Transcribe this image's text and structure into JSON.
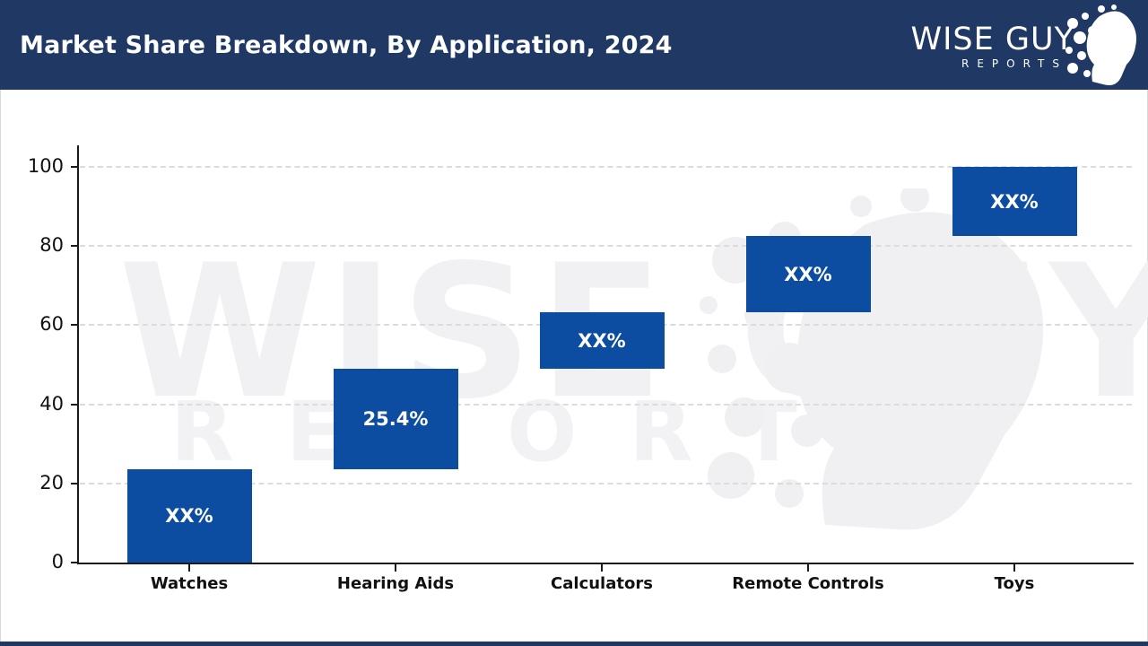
{
  "header": {
    "title": "Market Share Breakdown, By Application, 2024",
    "logo": {
      "wordmark": "WISE GUY",
      "subtext": "REPORTS"
    }
  },
  "watermark": {
    "wordmark": "WISE GUY",
    "subtext": "REPORTS"
  },
  "chart_data": {
    "type": "bar",
    "subtype": "waterfall",
    "title": "Market Share Breakdown, By Application, 2024",
    "categories": [
      "Watches",
      "Hearing Aids",
      "Calculators",
      "Remote Controls",
      "Toys"
    ],
    "segments": [
      [
        0,
        23.6
      ],
      [
        23.6,
        49.0
      ],
      [
        49.0,
        63.2
      ],
      [
        63.2,
        82.5
      ],
      [
        82.5,
        100.0
      ]
    ],
    "values": [
      23.6,
      25.4,
      14.2,
      19.3,
      17.5
    ],
    "bar_labels": [
      "XX%",
      "25.4%",
      "XX%",
      "XX%",
      "XX%"
    ],
    "xlabel": "",
    "ylabel": "",
    "y_ticks": [
      0,
      20,
      40,
      60,
      80,
      100
    ],
    "ylim": [
      0,
      105
    ],
    "grid": "horizontal-dashed",
    "legend": "none",
    "bar_color": "#0c4da2",
    "bar_label_color": "#ffffff",
    "axis_color": "#1a1a1a",
    "gridline_color": "#dcdcdc",
    "header_bg": "#1f3864"
  }
}
